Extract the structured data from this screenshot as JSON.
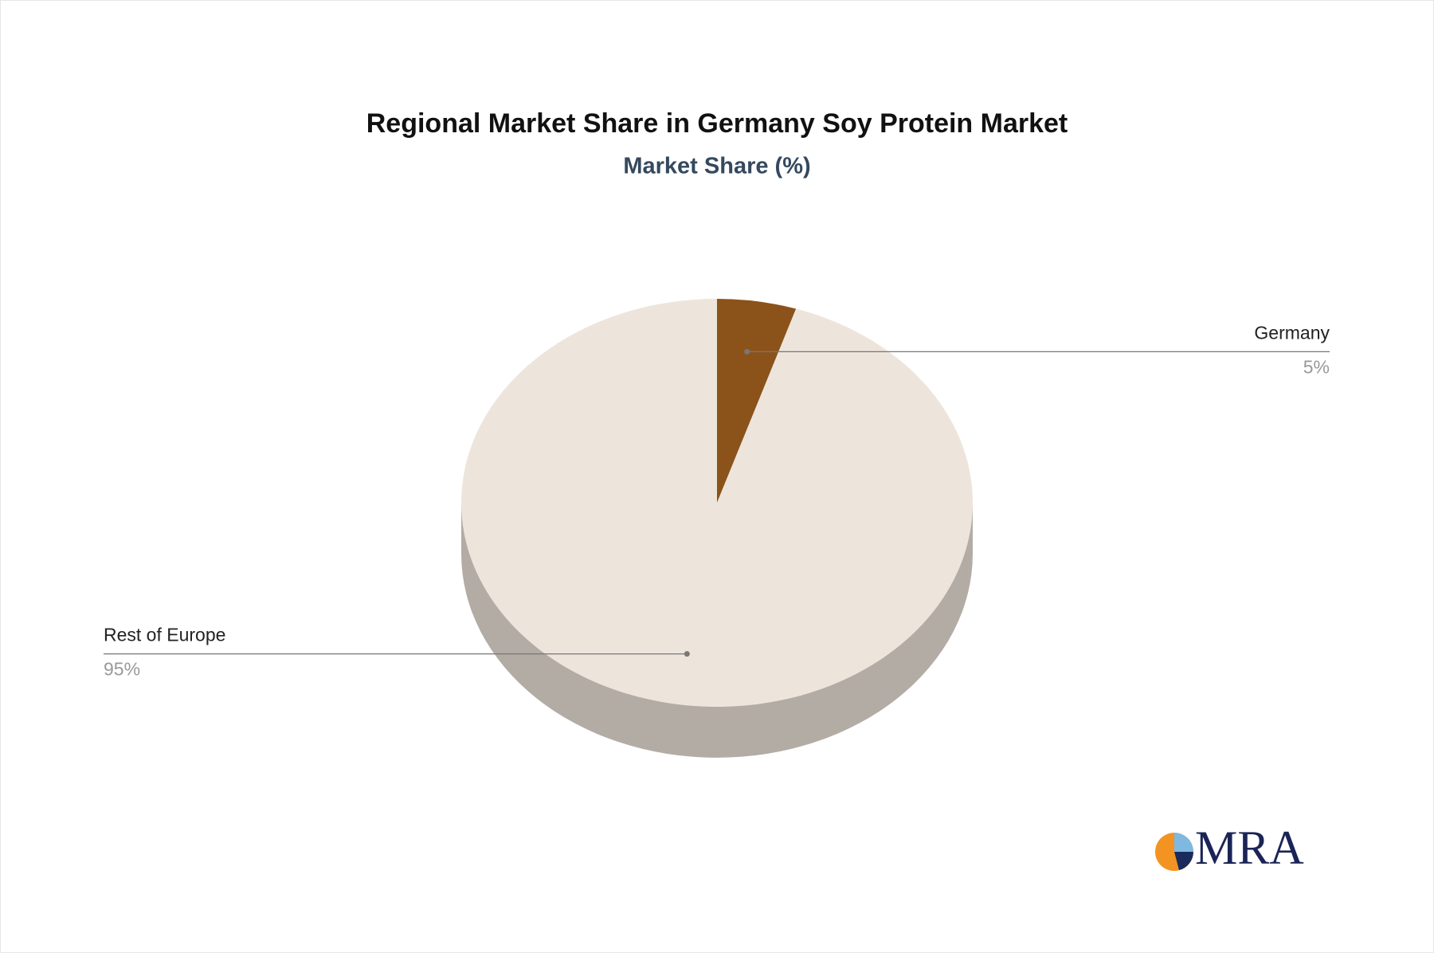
{
  "chart_data": {
    "type": "pie",
    "title": "Regional Market Share in Germany Soy Protein Market",
    "subtitle": "Market Share (%)",
    "categories": [
      "Germany",
      "Rest of Europe"
    ],
    "values": [
      5,
      95
    ],
    "value_labels": [
      "5%",
      "95%"
    ],
    "colors": [
      "#8b531a",
      "#ede5dc"
    ]
  },
  "brand": "MRA"
}
